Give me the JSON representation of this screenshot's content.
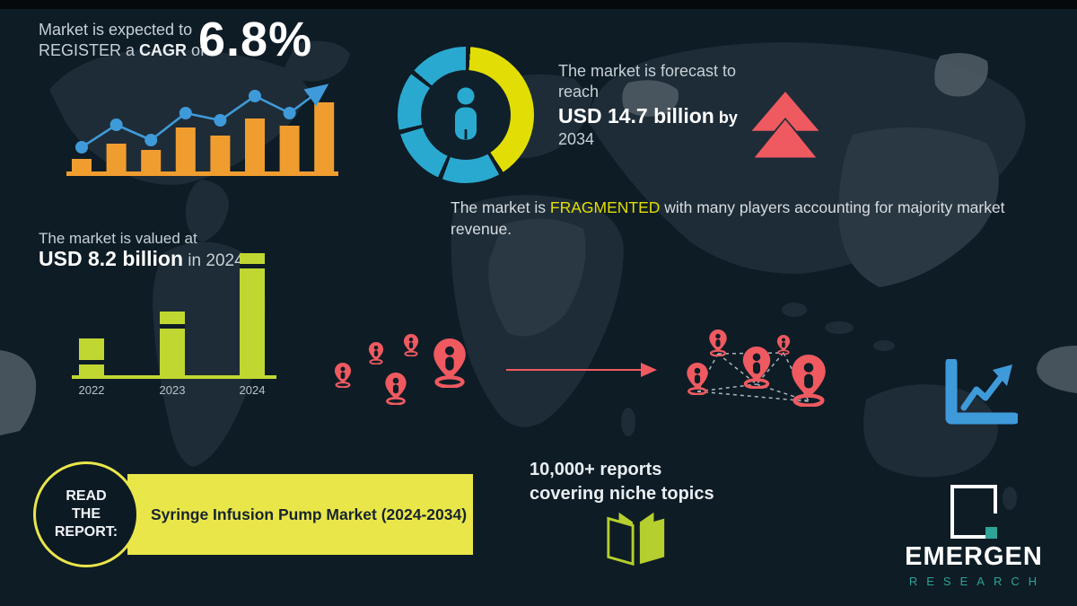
{
  "colors": {
    "background": "#0E1C26",
    "map": "#1E2C37",
    "map_mid": "#2A3843",
    "map_light": "#4E5A63",
    "orange": "#F09D30",
    "blue": "#3F9AD9",
    "teal": "#2AA9D0",
    "yellow": "#E2DE05",
    "red": "#EE5A60",
    "green": "#C0D732",
    "banner_yellow": "#E9E64A",
    "logo_teal": "#2EA396",
    "text_light": "#C7D0D6",
    "white": "#FFFFFF",
    "ink": "#17242E"
  },
  "header": {
    "line1": "Market is expected to",
    "line2_prefix": "REGISTER a ",
    "line2_bold": "CAGR",
    "line2_suffix": " of",
    "cagr_value": "6.8%"
  },
  "forecast": {
    "line1": "The market is forecast to",
    "line2": "reach",
    "value": "USD 14.7 billion",
    "by_word": "by",
    "year": "2034"
  },
  "fragmented": {
    "prefix": "The market is ",
    "highlight": "FRAGMENTED",
    "suffix": " with many players accounting for majority market revenue."
  },
  "valuation": {
    "line1": "The market is valued at",
    "value": "USD 8.2 billion",
    "suffix": " in 2024"
  },
  "reports": {
    "line1": "10,000+ reports",
    "line2": "covering niche topics"
  },
  "read_report": {
    "badge_line1": "READ",
    "badge_line2": "THE",
    "badge_line3": "REPORT:",
    "banner": "Syringe Infusion Pump Market (2024-2034)"
  },
  "logo": {
    "name": "EMERGEN",
    "tagline": "RESEARCH"
  },
  "icons": {
    "person-icon": "person silhouette in donut center",
    "double-up-arrow-icon": "red double chevron pointing up",
    "location-pin-icon": "map pin with person silhouette over ellipse base",
    "consolidation-arrow-icon": "thin red arrow pointing right",
    "network-dashes": "white dashed lines linking pins",
    "chart-up-icon": "blue axes with rising zigzag arrow",
    "open-book-icon": "green open book",
    "logo-square-icon": "white square outline with teal corner",
    "trend-arrow-icon": "blue arrow tip ending the trend line"
  },
  "chart_data": [
    {
      "id": "cagr-trend",
      "type": "bar",
      "title": "Market is expected to REGISTER a CAGR of 6.8%",
      "values": [
        17,
        34,
        27,
        52,
        43,
        62,
        54,
        80
      ],
      "series": [
        {
          "name": "trend-line",
          "type": "line",
          "values": [
            30,
            55,
            38,
            68,
            60,
            87,
            68
          ]
        }
      ],
      "bar_color": "#F09D30",
      "line_color": "#3F9AD9",
      "axis_labels_visible": false,
      "grid": false,
      "note_units": "relative height units, axis unlabeled"
    },
    {
      "id": "valuation-by-year",
      "type": "bar",
      "title": "The market is valued at USD 8.2 billion in 2024",
      "categories": [
        "2022",
        "2023",
        "2024"
      ],
      "values": [
        2.5,
        4.3,
        8.2
      ],
      "unit": "USD billion",
      "bar_color": "#C0D732",
      "grid": false,
      "labeled_point": "2024 = USD 8.2 billion (2022 and 2023 estimated from bar proportions)"
    },
    {
      "id": "market-share-donut",
      "type": "pie",
      "slices": [
        {
          "name": "leading-share",
          "value": 42,
          "color": "#E2DE05"
        },
        {
          "name": "segment-2",
          "value": 14.5,
          "color": "#2AA9D0"
        },
        {
          "name": "segment-3",
          "value": 14.5,
          "color": "#2AA9D0"
        },
        {
          "name": "segment-4",
          "value": 14.5,
          "color": "#2AA9D0"
        },
        {
          "name": "segment-5",
          "value": 14.5,
          "color": "#2AA9D0"
        }
      ],
      "legend": false,
      "values_visible": false
    }
  ]
}
